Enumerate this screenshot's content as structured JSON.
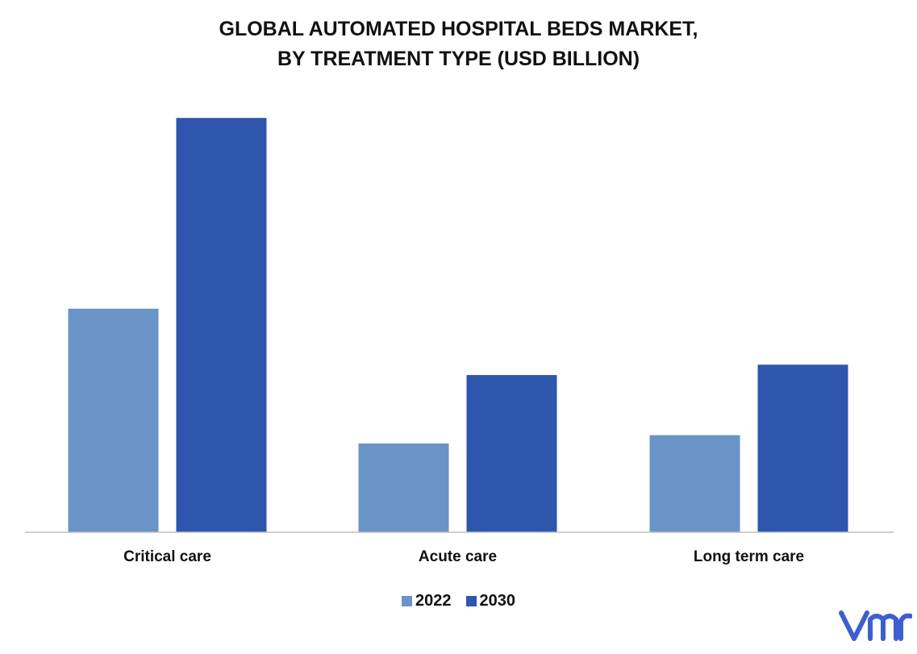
{
  "chart_data": {
    "type": "bar",
    "title_lines": [
      "GLOBAL AUTOMATED HOSPITAL BEDS MARKET,",
      "BY TREATMENT TYPE (USD BILLION)"
    ],
    "categories": [
      "Critical care",
      "Acute care",
      "Long term care"
    ],
    "series": [
      {
        "name": "2022",
        "values": [
          5.4,
          2.15,
          2.35
        ],
        "color": "#6a93c8"
      },
      {
        "name": "2030",
        "values": [
          10.0,
          3.8,
          4.05
        ],
        "color": "#2e56ad"
      }
    ],
    "ylim": [
      0,
      10.5
    ],
    "grid": false,
    "legend_position": "bottom"
  },
  "branding": {
    "logo_icon": "vmr-logo-icon",
    "logo_color": "#3d5fd1"
  }
}
